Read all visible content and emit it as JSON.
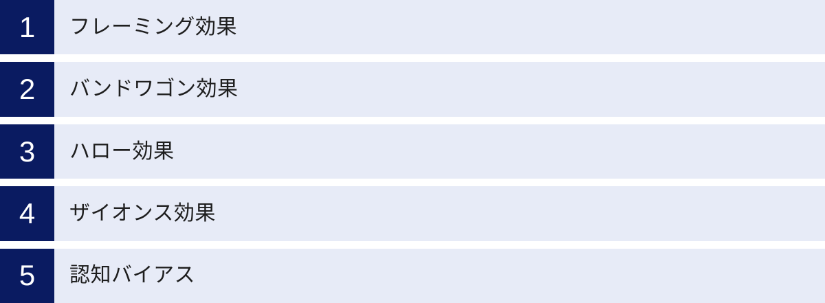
{
  "list": {
    "items": [
      {
        "number": "1",
        "label": "フレーミング効果"
      },
      {
        "number": "2",
        "label": "バンドワゴン効果"
      },
      {
        "number": "3",
        "label": "ハロー効果"
      },
      {
        "number": "4",
        "label": "ザイオンス効果"
      },
      {
        "number": "5",
        "label": "認知バイアス"
      }
    ]
  },
  "colors": {
    "badge_bg": "#0a1b61",
    "badge_text": "#ffffff",
    "row_bg": "#e7ebf7",
    "label_text": "#1e1e1e",
    "page_bg": "#ffffff"
  }
}
